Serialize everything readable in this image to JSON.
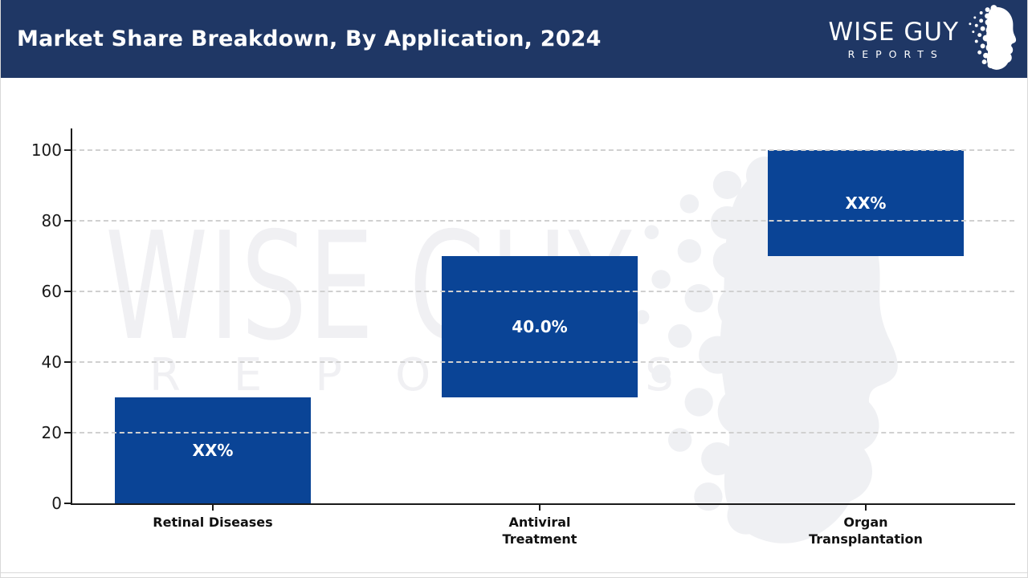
{
  "header": {
    "title": "Market Share Breakdown, By Application, 2024",
    "bg_color": "#1f3765",
    "logo_line1": "WISE GUY",
    "logo_line2": "REPORTS"
  },
  "watermark": {
    "line1": "WISE GUY",
    "line2": "REPORTS"
  },
  "chart_data": {
    "type": "bar",
    "variant": "floating_range_bars",
    "title": "Market Share Breakdown, By Application, 2024",
    "categories": [
      "Retinal Diseases",
      "Antiviral\nTreatment",
      "Organ\nTransplantation"
    ],
    "series": [
      {
        "ranges": [
          [
            0,
            30
          ],
          [
            30,
            70
          ],
          [
            70,
            100
          ]
        ],
        "labels": [
          "XX%",
          "40.0%",
          "XX%"
        ]
      }
    ],
    "ylim": [
      0,
      100
    ],
    "yticks": [
      0,
      20,
      40,
      60,
      80,
      100
    ],
    "grid": {
      "axis": "y",
      "style": "dashed",
      "on": true
    },
    "legend": "none",
    "bar_color": "#0a4496",
    "bar_label_color": "#ffffff",
    "gridline_color": "#d0d0d0",
    "axis_color": "#1a1a1a"
  }
}
